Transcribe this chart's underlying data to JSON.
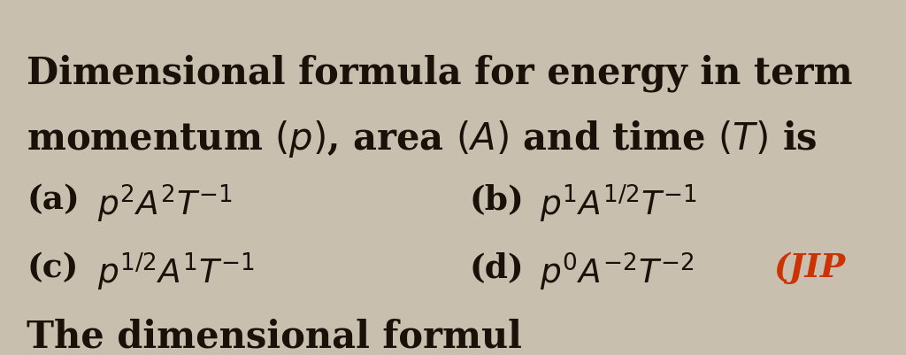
{
  "bg_color": "#c8bfaf",
  "text_color": "#1a1208",
  "orange_color": "#cc3300",
  "line1": "Dimensional formula for energy in term",
  "line2": "momentum $(p)$, area $(A)$ and time $(T)$ is",
  "opt_a_label": "(a)",
  "opt_a_expr": "$p^{2}A^{2}T^{-1}$",
  "opt_b_label": "(b)",
  "opt_b_expr": "$p^{1}A^{1/2}T^{-1}$",
  "opt_c_label": "(c)",
  "opt_c_expr": "$p^{1/2}A^{1}T^{-1}$",
  "opt_d_label": "(d)",
  "opt_d_expr": "$p^{0}A^{-2}T^{-2}$",
  "jiip_label": "(JIP",
  "bottom_text": "The dimensional formul",
  "font_size_main": 30,
  "font_size_opts": 27
}
